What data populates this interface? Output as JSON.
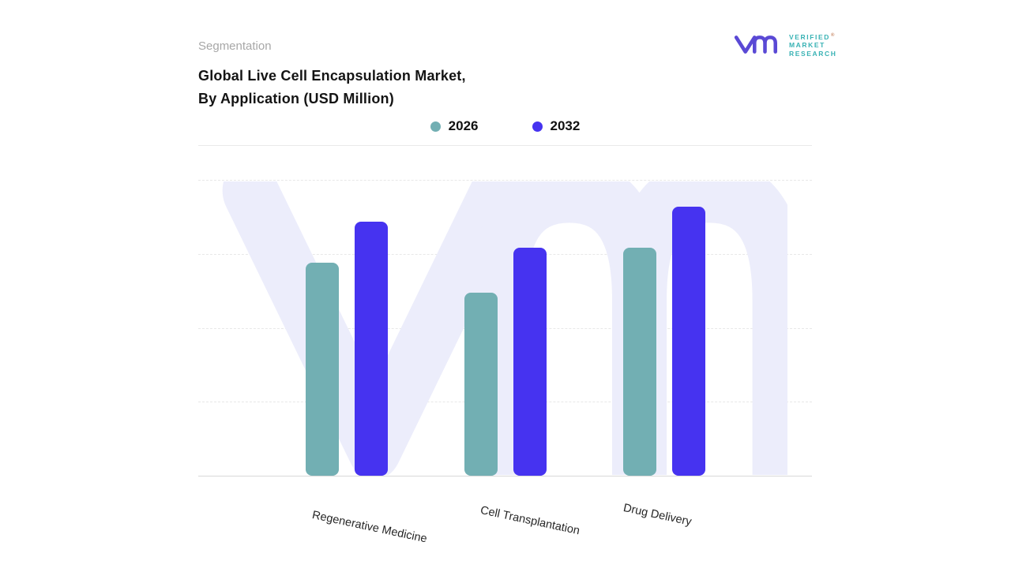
{
  "header": {
    "eyebrow": "Segmentation",
    "title_line1": "Global Live Cell Encapsulation Market,",
    "title_line2": "By Application (USD Million)"
  },
  "logo": {
    "brand_lines": [
      "VERIFIED",
      "MARKET",
      "RESEARCH"
    ],
    "registered_mark": "®",
    "mark_color": "#5A49D5",
    "text_color": "#38B2B4"
  },
  "chart_data": {
    "type": "bar",
    "title": "Global Live Cell Encapsulation Market, By Application (USD Million)",
    "categories": [
      "Regenerative Medicine",
      "Cell Transplantation",
      "Drug Delivery"
    ],
    "series": [
      {
        "name": "2026",
        "color": "#72AFB3",
        "values": [
          72,
          62,
          77
        ]
      },
      {
        "name": "2032",
        "color": "#4633F0",
        "values": [
          86,
          77,
          91
        ]
      }
    ],
    "ylim": [
      0,
      100
    ],
    "y_axis_labels_visible": false,
    "grid": "horizontal dashed",
    "legend_position": "top center",
    "watermark": "VM",
    "watermark_color": "#ECEDFB"
  }
}
